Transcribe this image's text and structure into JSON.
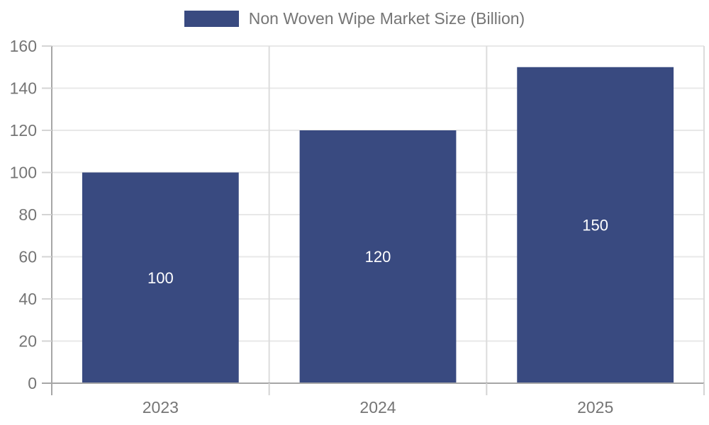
{
  "chart_data": {
    "type": "bar",
    "title": "",
    "xlabel": "",
    "ylabel": "",
    "categories": [
      "2023",
      "2024",
      "2025"
    ],
    "series": [
      {
        "name": "Non Woven Wipe Market Size (Billion)",
        "values": [
          100,
          120,
          150
        ]
      }
    ],
    "value_labels": [
      "100",
      "120",
      "150"
    ],
    "ylim": [
      0,
      160
    ],
    "y_ticks": [
      0,
      20,
      40,
      60,
      80,
      100,
      120,
      140,
      160
    ],
    "y_tick_labels": [
      "0",
      "20",
      "40",
      "60",
      "80",
      "100",
      "120",
      "140",
      "160"
    ],
    "legend_position": "top",
    "grid": "on",
    "colors": {
      "bar": "#394a80",
      "value_label": "#ffffff",
      "axis_line": "#a6a6a6",
      "grid_line": "#e8e8e8",
      "grid_line_vertical": "#dcdcdc",
      "tick": "#d4d4d4",
      "text": "#757575",
      "background": "#ffffff"
    }
  }
}
